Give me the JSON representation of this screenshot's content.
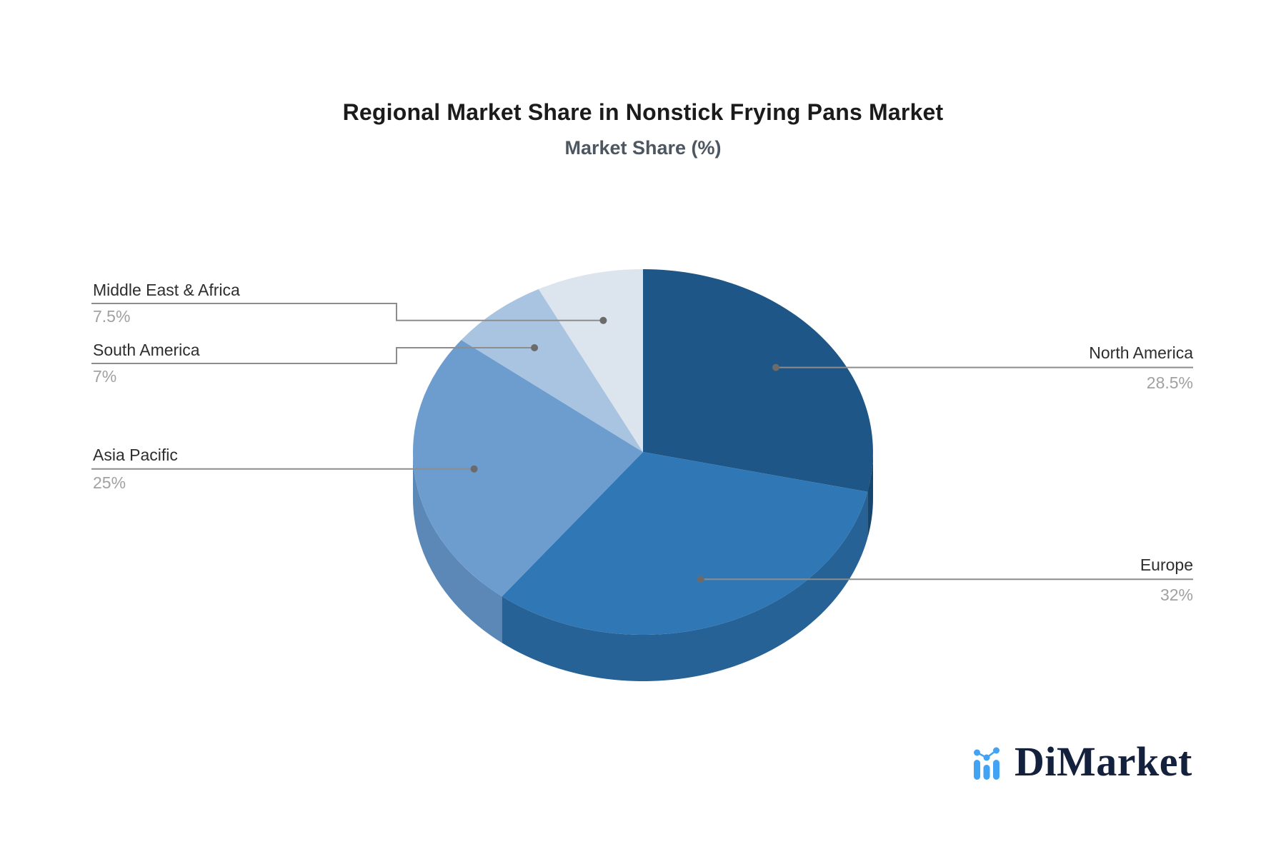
{
  "chart_data": {
    "type": "pie",
    "style": "3d",
    "title": "Regional Market Share in Nonstick Frying Pans Market",
    "subtitle": "Market Share (%)",
    "unit": "%",
    "legend_position": "callout-labels",
    "segments": [
      {
        "label": "North America",
        "value": 28.5,
        "display": "28.5%",
        "color": "#1d5687",
        "side_color": "#16456d",
        "label_side": "right"
      },
      {
        "label": "Europe",
        "value": 32,
        "display": "32%",
        "color": "#2f78b5",
        "side_color": "#266296",
        "label_side": "right"
      },
      {
        "label": "Asia Pacific",
        "value": 25,
        "display": "25%",
        "color": "#6d9ccf",
        "side_color": "#5c88b8",
        "label_side": "left"
      },
      {
        "label": "South America",
        "value": 7,
        "display": "7%",
        "color": "#a9c4e1",
        "side_color": "#8fb0d4",
        "label_side": "left"
      },
      {
        "label": "Middle East & Africa",
        "value": 7.5,
        "display": "7.5%",
        "color": "#dce4ee",
        "side_color": "#c2cfdf",
        "label_side": "left"
      }
    ],
    "callout_line_color": "#8d8d8d",
    "callout_dot_color": "#6b6b6b"
  },
  "branding": {
    "logo_text": "DiMarket",
    "logo_icon": "bar-line-chart-icon",
    "icon_color": "#42a3f5",
    "text_color": "#14213d"
  }
}
